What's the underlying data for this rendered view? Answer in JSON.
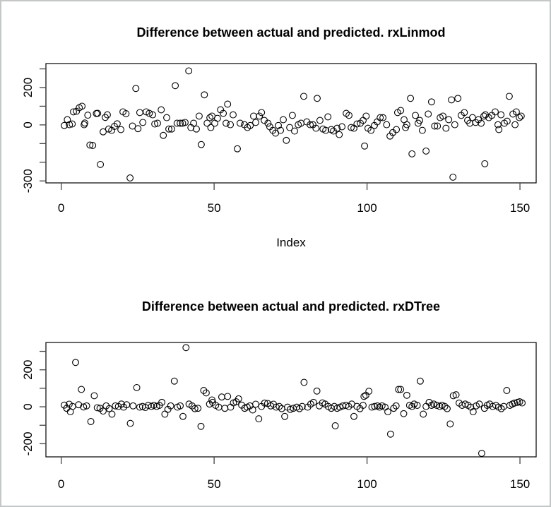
{
  "window": {
    "background": "#ffffff",
    "border_color": "#c4c7c8"
  },
  "chart_data": [
    {
      "type": "scatter",
      "title": "Difference between actual and predicted. rxLinmod",
      "xlabel": "Index",
      "ylabel": "",
      "x_ticks": [
        0,
        50,
        100,
        150
      ],
      "y_ticks": [
        300,
        200,
        100,
        0,
        -100,
        -200,
        -300
      ],
      "y_tick_labels": [
        200,
        0,
        -300
      ],
      "xlim": [
        -5,
        155.3
      ],
      "ylim": [
        -310.5,
        328.5
      ],
      "grid": false,
      "legend": "none",
      "marker": "open-circle",
      "point_color": "#000000",
      "points": [
        [
          1,
          -3
        ],
        [
          2,
          28
        ],
        [
          2.7,
          1
        ],
        [
          3.6,
          5
        ],
        [
          4,
          70
        ],
        [
          5,
          73
        ],
        [
          5.9,
          92
        ],
        [
          6.8,
          100
        ],
        [
          7.5,
          1
        ],
        [
          7.7,
          10
        ],
        [
          8.7,
          52
        ],
        [
          9.4,
          -108
        ],
        [
          10.3,
          -110
        ],
        [
          11.5,
          61
        ],
        [
          11.9,
          62
        ],
        [
          12.8,
          -212
        ],
        [
          13.7,
          -37
        ],
        [
          14.4,
          40
        ],
        [
          15.1,
          54
        ],
        [
          15.5,
          -22
        ],
        [
          16.5,
          -29
        ],
        [
          17.4,
          -8
        ],
        [
          18.3,
          6
        ],
        [
          19.5,
          -25
        ],
        [
          20.2,
          70
        ],
        [
          21.2,
          60
        ],
        [
          22.5,
          -284
        ],
        [
          23.3,
          -6
        ],
        [
          24.4,
          195
        ],
        [
          25.1,
          -20
        ],
        [
          25.7,
          66
        ],
        [
          26.7,
          13
        ],
        [
          27.8,
          70
        ],
        [
          28.8,
          62
        ],
        [
          29.9,
          54
        ],
        [
          30.6,
          5
        ],
        [
          31.5,
          9
        ],
        [
          32.7,
          81
        ],
        [
          33.4,
          -56
        ],
        [
          34.5,
          39
        ],
        [
          35.2,
          -22
        ],
        [
          36.1,
          -22
        ],
        [
          37.3,
          210
        ],
        [
          37.9,
          9
        ],
        [
          38.9,
          9
        ],
        [
          39.7,
          9
        ],
        [
          40.5,
          13
        ],
        [
          41.7,
          289
        ],
        [
          42.4,
          -14
        ],
        [
          43.3,
          9
        ],
        [
          44.2,
          -22
        ],
        [
          45.1,
          47
        ],
        [
          45.8,
          -105
        ],
        [
          46.8,
          161
        ],
        [
          47.7,
          9
        ],
        [
          48.6,
          39
        ],
        [
          48.9,
          -14
        ],
        [
          49.3,
          47
        ],
        [
          50.2,
          9
        ],
        [
          51.1,
          35
        ],
        [
          52.1,
          81
        ],
        [
          53,
          62
        ],
        [
          53.9,
          9
        ],
        [
          54.4,
          111
        ],
        [
          55.3,
          1
        ],
        [
          56.2,
          54
        ],
        [
          57.6,
          -128
        ],
        [
          58.5,
          9
        ],
        [
          59.9,
          1
        ],
        [
          60.9,
          -14
        ],
        [
          61.8,
          -3
        ],
        [
          62.9,
          47
        ],
        [
          63.6,
          13
        ],
        [
          64.8,
          47
        ],
        [
          65.5,
          66
        ],
        [
          66.4,
          24
        ],
        [
          67.6,
          9
        ],
        [
          68.2,
          -10
        ],
        [
          69.2,
          -29
        ],
        [
          70.1,
          -44
        ],
        [
          71,
          -3
        ],
        [
          71.7,
          -29
        ],
        [
          72.6,
          28
        ],
        [
          73.6,
          -83
        ],
        [
          74.7,
          -14
        ],
        [
          75.6,
          51
        ],
        [
          76.3,
          -33
        ],
        [
          77.5,
          1
        ],
        [
          78.4,
          9
        ],
        [
          79.3,
          153
        ],
        [
          80.3,
          16
        ],
        [
          81.4,
          1
        ],
        [
          82.3,
          1
        ],
        [
          83.3,
          -18
        ],
        [
          83.7,
          142
        ],
        [
          84.6,
          24
        ],
        [
          85.6,
          -22
        ],
        [
          86.5,
          -29
        ],
        [
          87.2,
          43
        ],
        [
          88.3,
          -25
        ],
        [
          89,
          -33
        ],
        [
          90.2,
          -18
        ],
        [
          90.9,
          -52
        ],
        [
          91.8,
          -10
        ],
        [
          93.2,
          62
        ],
        [
          94.1,
          51
        ],
        [
          94.8,
          -14
        ],
        [
          95.7,
          -18
        ],
        [
          96.7,
          5
        ],
        [
          97.8,
          9
        ],
        [
          98.7,
          24
        ],
        [
          99.2,
          -113
        ],
        [
          99.7,
          47
        ],
        [
          100.3,
          -18
        ],
        [
          101.3,
          -29
        ],
        [
          102.4,
          -3
        ],
        [
          103.3,
          16
        ],
        [
          104.3,
          39
        ],
        [
          105.2,
          39
        ],
        [
          106.4,
          1
        ],
        [
          107.5,
          -60
        ],
        [
          108.4,
          -41
        ],
        [
          109.6,
          -25
        ],
        [
          110,
          66
        ],
        [
          111,
          77
        ],
        [
          112.1,
          28
        ],
        [
          112.6,
          -14
        ],
        [
          113,
          1
        ],
        [
          114.2,
          142
        ],
        [
          114.7,
          -155
        ],
        [
          115.8,
          51
        ],
        [
          116.7,
          9
        ],
        [
          117.2,
          24
        ],
        [
          118.1,
          -29
        ],
        [
          119.3,
          -140
        ],
        [
          120,
          58
        ],
        [
          121.1,
          123
        ],
        [
          122.1,
          -6
        ],
        [
          123,
          -6
        ],
        [
          123.9,
          39
        ],
        [
          124.8,
          47
        ],
        [
          125.8,
          -18
        ],
        [
          126.7,
          28
        ],
        [
          127.6,
          134
        ],
        [
          128.1,
          -280
        ],
        [
          128.7,
          1
        ],
        [
          129.7,
          142
        ],
        [
          130.8,
          51
        ],
        [
          131.8,
          66
        ],
        [
          132.9,
          24
        ],
        [
          133.6,
          9
        ],
        [
          134.5,
          39
        ],
        [
          135.5,
          13
        ],
        [
          136.4,
          28
        ],
        [
          137.3,
          9
        ],
        [
          138.2,
          47
        ],
        [
          138.5,
          -208
        ],
        [
          138.7,
          54
        ],
        [
          139.8,
          39
        ],
        [
          140.8,
          51
        ],
        [
          141.9,
          70
        ],
        [
          142.8,
          1
        ],
        [
          143.1,
          -25
        ],
        [
          143.8,
          54
        ],
        [
          144.9,
          9
        ],
        [
          145.8,
          20
        ],
        [
          146.5,
          153
        ],
        [
          147.7,
          58
        ],
        [
          148.4,
          1
        ],
        [
          148.8,
          70
        ],
        [
          149.8,
          39
        ],
        [
          150.4,
          47
        ]
      ]
    },
    {
      "type": "scatter",
      "title": "Difference between actual and predicted. rxDTree",
      "xlabel": "",
      "ylabel": "",
      "x_ticks": [
        0,
        50,
        100,
        150
      ],
      "y_ticks": [
        300,
        200,
        100,
        0,
        -100,
        -200
      ],
      "y_tick_labels": [
        200,
        0,
        -200
      ],
      "xlim": [
        -5,
        155.3
      ],
      "ylim": [
        -271,
        348
      ],
      "grid": false,
      "legend": "none",
      "marker": "open-circle",
      "point_color": "#000000",
      "points": [
        [
          1,
          9
        ],
        [
          1.8,
          -8
        ],
        [
          2.6,
          14
        ],
        [
          3,
          -27
        ],
        [
          3.7,
          2
        ],
        [
          4.7,
          240
        ],
        [
          5.7,
          11
        ],
        [
          6.6,
          94
        ],
        [
          7.3,
          -1
        ],
        [
          8.3,
          5
        ],
        [
          9.7,
          -80
        ],
        [
          10.8,
          60
        ],
        [
          11.8,
          -5
        ],
        [
          12.7,
          -8
        ],
        [
          13.7,
          -23
        ],
        [
          14.7,
          5
        ],
        [
          15.7,
          -10
        ],
        [
          16.6,
          -40
        ],
        [
          17.7,
          5
        ],
        [
          18.7,
          2
        ],
        [
          19.7,
          15
        ],
        [
          20.4,
          -2
        ],
        [
          21.4,
          11
        ],
        [
          22.6,
          -90
        ],
        [
          23.5,
          5
        ],
        [
          24.7,
          104
        ],
        [
          25.7,
          -2
        ],
        [
          26.6,
          2
        ],
        [
          27.5,
          -4
        ],
        [
          28.5,
          8
        ],
        [
          29.5,
          2
        ],
        [
          30.3,
          8
        ],
        [
          31.2,
          2
        ],
        [
          32.1,
          8
        ],
        [
          32.9,
          24
        ],
        [
          33.9,
          -40
        ],
        [
          34.9,
          -14
        ],
        [
          35.8,
          5
        ],
        [
          37,
          139
        ],
        [
          38,
          -2
        ],
        [
          38.9,
          5
        ],
        [
          39.8,
          -52
        ],
        [
          40.8,
          320
        ],
        [
          41.8,
          15
        ],
        [
          42.8,
          5
        ],
        [
          43.7,
          -10
        ],
        [
          44.7,
          -8
        ],
        [
          45.7,
          -106
        ],
        [
          46.6,
          88
        ],
        [
          47.4,
          75
        ],
        [
          48.5,
          15
        ],
        [
          49.3,
          37
        ],
        [
          49.5,
          24
        ],
        [
          50.5,
          8
        ],
        [
          51.5,
          -2
        ],
        [
          52.5,
          53
        ],
        [
          53.5,
          -8
        ],
        [
          54.4,
          56
        ],
        [
          55.4,
          -2
        ],
        [
          56.3,
          21
        ],
        [
          57.2,
          27
        ],
        [
          58,
          43
        ],
        [
          59,
          9
        ],
        [
          60,
          -8
        ],
        [
          60.8,
          -2
        ],
        [
          61.7,
          5
        ],
        [
          62.6,
          -17
        ],
        [
          63.6,
          14
        ],
        [
          64.6,
          -65
        ],
        [
          65.5,
          2
        ],
        [
          66.5,
          20
        ],
        [
          67.5,
          18
        ],
        [
          68.5,
          5
        ],
        [
          69.4,
          14
        ],
        [
          70.3,
          -2
        ],
        [
          71.3,
          2
        ],
        [
          72.1,
          -10
        ],
        [
          73.1,
          -52
        ],
        [
          74,
          -2
        ],
        [
          74.9,
          -14
        ],
        [
          75.9,
          -8
        ],
        [
          77,
          -2
        ],
        [
          77.9,
          -10
        ],
        [
          78.8,
          2
        ],
        [
          79.4,
          132
        ],
        [
          80.6,
          -2
        ],
        [
          81.6,
          15
        ],
        [
          82.5,
          24
        ],
        [
          83.6,
          85
        ],
        [
          84.4,
          5
        ],
        [
          85.4,
          21
        ],
        [
          86.3,
          15
        ],
        [
          87.3,
          2
        ],
        [
          88.3,
          -8
        ],
        [
          89.3,
          2
        ],
        [
          89.6,
          -103
        ],
        [
          90.2,
          -8
        ],
        [
          91.1,
          -2
        ],
        [
          92.1,
          5
        ],
        [
          93.1,
          8
        ],
        [
          94,
          2
        ],
        [
          95,
          15
        ],
        [
          95.7,
          -52
        ],
        [
          96.7,
          2
        ],
        [
          97.7,
          -10
        ],
        [
          98.7,
          8
        ],
        [
          99,
          56
        ],
        [
          99.6,
          62
        ],
        [
          100.6,
          84
        ],
        [
          101.6,
          -2
        ],
        [
          102.5,
          2
        ],
        [
          103.4,
          5
        ],
        [
          104.1,
          -2
        ],
        [
          104.9,
          5
        ],
        [
          105.9,
          -2
        ],
        [
          106.8,
          -27
        ],
        [
          107.7,
          -148
        ],
        [
          108.7,
          -8
        ],
        [
          109.5,
          5
        ],
        [
          110.3,
          94
        ],
        [
          111,
          94
        ],
        [
          112,
          -37
        ],
        [
          113,
          62
        ],
        [
          113.9,
          8
        ],
        [
          114.7,
          2
        ],
        [
          115.4,
          15
        ],
        [
          116.4,
          8
        ],
        [
          117.4,
          139
        ],
        [
          118.4,
          -40
        ],
        [
          119.3,
          2
        ],
        [
          120.3,
          24
        ],
        [
          121.1,
          8
        ],
        [
          121.8,
          15
        ],
        [
          122.8,
          8
        ],
        [
          123.8,
          2
        ],
        [
          124.5,
          8
        ],
        [
          125.4,
          2
        ],
        [
          126.2,
          -10
        ],
        [
          127.2,
          -93
        ],
        [
          128.2,
          60
        ],
        [
          129.1,
          65
        ],
        [
          130.1,
          20
        ],
        [
          131.1,
          8
        ],
        [
          132.1,
          15
        ],
        [
          133,
          8
        ],
        [
          133.9,
          -2
        ],
        [
          134.7,
          -27
        ],
        [
          135.7,
          5
        ],
        [
          136.7,
          15
        ],
        [
          137.5,
          -252
        ],
        [
          138.4,
          -8
        ],
        [
          139.3,
          8
        ],
        [
          140.1,
          15
        ],
        [
          141.1,
          2
        ],
        [
          142.1,
          8
        ],
        [
          143,
          -2
        ],
        [
          143.9,
          -10
        ],
        [
          144.7,
          2
        ],
        [
          145.7,
          88
        ],
        [
          146.7,
          8
        ],
        [
          147.5,
          15
        ],
        [
          148.2,
          20
        ],
        [
          149.2,
          24
        ],
        [
          149.9,
          27
        ],
        [
          150.7,
          21
        ]
      ]
    }
  ]
}
